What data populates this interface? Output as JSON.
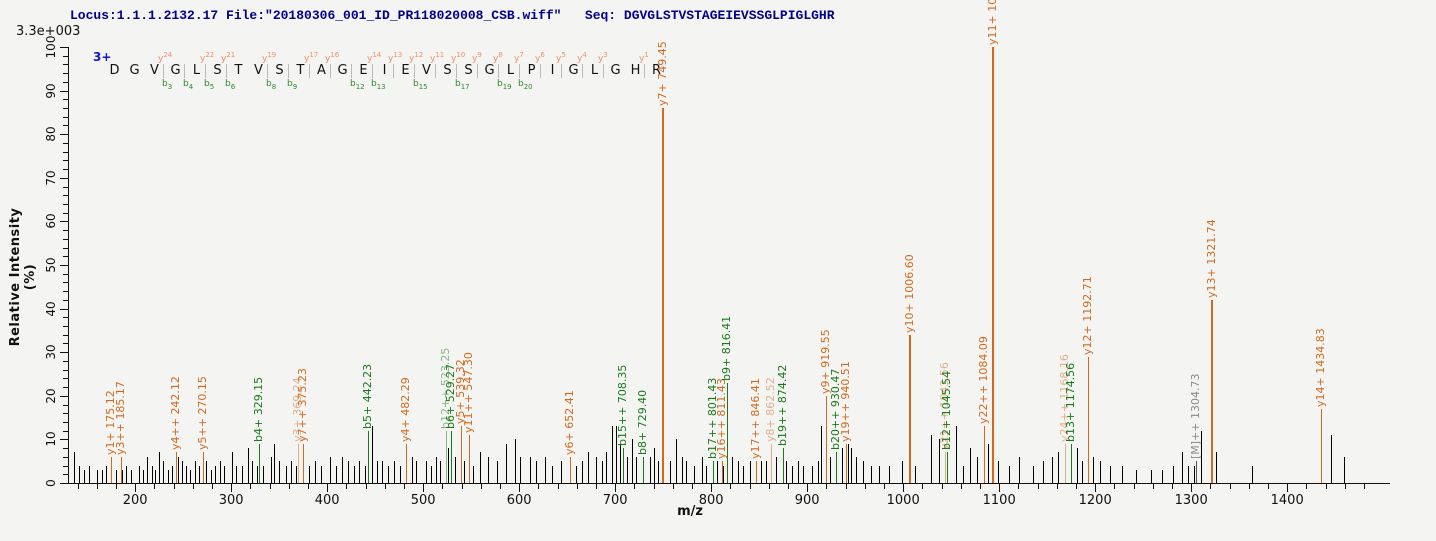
{
  "header": {
    "locus_file": "Locus:1.1.1.2132.17 File:\"20180306_001_ID_PR118020008_CSB.wiff\"",
    "seq": "Seq: DGVGLSTVSTAGEIEVSSGLPIGLGHR"
  },
  "scale_label": "3.3e+003",
  "axes": {
    "y_title": "Relative  Intensity (%)",
    "x_title": "m/z",
    "y_tick_step": 10,
    "y_minor_step": 2,
    "y_max": 100,
    "x_tick_min": 200,
    "x_tick_max": 1400,
    "x_tick_step": 100,
    "x_minor_step": 20,
    "x_axis_mz_min": 130,
    "x_axis_mz_end": 1500
  },
  "peptide": {
    "charge": "3+",
    "sequence": "DGVGLSTVSTAGEIEVSSGLPIGLGHR",
    "y_ions": {
      "3": 24,
      "5": 22,
      "6": 21,
      "8": 19,
      "10": 17,
      "11": 16,
      "13": 14,
      "14": 13,
      "15": 12,
      "16": 11,
      "17": 10,
      "18": 9,
      "19": 8,
      "20": 7,
      "21": 6,
      "22": 5,
      "23": 4,
      "24": 3,
      "26": 1
    },
    "b_ions": {
      "3": 3,
      "4": 4,
      "5": 5,
      "6": 6,
      "8": 8,
      "9": 9,
      "12": 12,
      "13": 13,
      "15": 15,
      "17": 17,
      "19": 19,
      "20": 20
    }
  },
  "colors": {
    "y_ion": "#d2691e",
    "b_ion": "#1a7a1a",
    "precursor": "#8a8a8a",
    "peak": "#000000",
    "header_text": "#00008b",
    "charge_text": "#1515c8",
    "seq_y_label": "#ef9166",
    "seq_b_label": "#2f8b2f"
  },
  "chart_data": {
    "type": "bar",
    "title": "MS/MS annotated spectrum",
    "xlabel": "m/z",
    "ylabel": "Relative  Intensity (%)",
    "ylim": [
      0,
      100
    ],
    "xlim": [
      130,
      1500
    ],
    "labeled_peaks": [
      {
        "mz": 175.12,
        "intensity": 6,
        "label": "y1+ 175.12",
        "series": "y"
      },
      {
        "mz": 185.17,
        "intensity": 6,
        "label": "y3++ 185.17",
        "series": "y"
      },
      {
        "mz": 242.12,
        "intensity": 7,
        "label": "y4++ 242.12",
        "series": "y"
      },
      {
        "mz": 270.15,
        "intensity": 7,
        "label": "y5++ 270.15",
        "series": "y"
      },
      {
        "mz": 329.15,
        "intensity": 9,
        "label": "b4+ 329.15",
        "series": "b"
      },
      {
        "mz": 369.24,
        "intensity": 9,
        "label": "y3+ 369.24",
        "series": "y",
        "faint": true
      },
      {
        "mz": 375.23,
        "intensity": 9,
        "label": "y7++ 375.23",
        "series": "y"
      },
      {
        "mz": 442.23,
        "intensity": 12,
        "label": "b5+ 442.23",
        "series": "b"
      },
      {
        "mz": 482.29,
        "intensity": 9,
        "label": "y4+ 482.29",
        "series": "y"
      },
      {
        "mz": 523.25,
        "intensity": 12,
        "label": "b12++ 523.25",
        "series": "b",
        "faint": true
      },
      {
        "mz": 529.27,
        "intensity": 12,
        "label": "b6+ 529.27",
        "series": "b"
      },
      {
        "mz": 539.32,
        "intensity": 13,
        "label": "y5+ 539.32",
        "series": "y"
      },
      {
        "mz": 547.3,
        "intensity": 11,
        "label": "y11++ 547.30",
        "series": "y"
      },
      {
        "mz": 652.41,
        "intensity": 6,
        "label": "y6+ 652.41",
        "series": "y"
      },
      {
        "mz": 708.35,
        "intensity": 8,
        "label": "b15++ 708.35",
        "series": "b"
      },
      {
        "mz": 729.4,
        "intensity": 6,
        "label": "b8+ 729.40",
        "series": "b"
      },
      {
        "mz": 749.45,
        "intensity": 86,
        "label": "y7+ 749.45",
        "series": "y"
      },
      {
        "mz": 801.43,
        "intensity": 5,
        "label": "b17++ 801.43",
        "series": "b"
      },
      {
        "mz": 811.43,
        "intensity": 5,
        "label": "y16++ 811.43",
        "series": "y"
      },
      {
        "mz": 816.41,
        "intensity": 23,
        "label": "b9+ 816.41",
        "series": "b"
      },
      {
        "mz": 846.41,
        "intensity": 5,
        "label": "y17++ 846.41",
        "series": "y"
      },
      {
        "mz": 862.52,
        "intensity": 9,
        "label": "y8+ 862.52",
        "series": "y",
        "faint": true
      },
      {
        "mz": 874.42,
        "intensity": 8,
        "label": "b19++ 874.42",
        "series": "b"
      },
      {
        "mz": 919.55,
        "intensity": 20,
        "label": "y9+ 919.55",
        "series": "y"
      },
      {
        "mz": 930.47,
        "intensity": 7,
        "label": "b20++ 930.47",
        "series": "b"
      },
      {
        "mz": 940.51,
        "intensity": 9,
        "label": "y19++ 940.51",
        "series": "y"
      },
      {
        "mz": 1006.6,
        "intensity": 34,
        "label": "y10+ 1006.60",
        "series": "y"
      },
      {
        "mz": 1043.56,
        "intensity": 7,
        "label": "y21++ 1043.56",
        "series": "y",
        "faint": true
      },
      {
        "mz": 1045.54,
        "intensity": 7,
        "label": "b12+ 1045.54",
        "series": "b"
      },
      {
        "mz": 1084.09,
        "intensity": 13,
        "label": "y22++ 1084.09",
        "series": "y"
      },
      {
        "mz": 1093.62,
        "intensity": 100,
        "label": "y11+ 1093.62",
        "series": "y"
      },
      {
        "mz": 1168.16,
        "intensity": 9,
        "label": "y24++ 1168.16",
        "series": "y",
        "faint": true
      },
      {
        "mz": 1174.56,
        "intensity": 9,
        "label": "b13+ 1174.56",
        "series": "b"
      },
      {
        "mz": 1192.71,
        "intensity": 29,
        "label": "y12+ 1192.71",
        "series": "y"
      },
      {
        "mz": 1304.73,
        "intensity": 5,
        "label": "[M]++ 1304.73",
        "series": "M"
      },
      {
        "mz": 1321.74,
        "intensity": 42,
        "label": "y13+ 1321.74",
        "series": "y"
      },
      {
        "mz": 1434.83,
        "intensity": 17,
        "label": "y14+ 1434.83",
        "series": "y"
      }
    ],
    "unlabeled_peaks": [
      [
        136,
        7
      ],
      [
        141,
        4
      ],
      [
        147,
        3
      ],
      [
        152,
        4
      ],
      [
        160,
        3
      ],
      [
        165,
        3
      ],
      [
        170,
        4
      ],
      [
        180,
        3
      ],
      [
        186,
        3
      ],
      [
        190,
        4
      ],
      [
        196,
        3
      ],
      [
        204,
        4
      ],
      [
        208,
        3
      ],
      [
        212,
        6
      ],
      [
        217,
        4
      ],
      [
        221,
        3
      ],
      [
        225,
        7
      ],
      [
        229,
        5
      ],
      [
        234,
        3
      ],
      [
        238,
        4
      ],
      [
        243,
        7
      ],
      [
        245,
        6
      ],
      [
        249,
        5
      ],
      [
        253,
        4
      ],
      [
        257,
        3
      ],
      [
        262,
        5
      ],
      [
        266,
        4
      ],
      [
        274,
        5
      ],
      [
        279,
        3
      ],
      [
        283,
        4
      ],
      [
        288,
        5
      ],
      [
        293,
        4
      ],
      [
        301,
        7
      ],
      [
        305,
        4
      ],
      [
        311,
        4
      ],
      [
        317,
        8
      ],
      [
        322,
        5
      ],
      [
        327,
        4
      ],
      [
        333,
        4
      ],
      [
        341,
        6
      ],
      [
        345,
        9
      ],
      [
        350,
        5
      ],
      [
        357,
        4
      ],
      [
        362,
        5
      ],
      [
        368,
        4
      ],
      [
        381,
        4
      ],
      [
        387,
        5
      ],
      [
        394,
        4
      ],
      [
        403,
        6
      ],
      [
        409,
        4
      ],
      [
        415,
        6
      ],
      [
        422,
        5
      ],
      [
        428,
        4
      ],
      [
        433,
        5
      ],
      [
        439,
        4
      ],
      [
        447,
        13
      ],
      [
        452,
        5
      ],
      [
        457,
        5
      ],
      [
        463,
        4
      ],
      [
        470,
        5
      ],
      [
        476,
        4
      ],
      [
        488,
        6
      ],
      [
        493,
        5
      ],
      [
        503,
        5
      ],
      [
        508,
        4
      ],
      [
        513,
        6
      ],
      [
        518,
        5
      ],
      [
        526,
        8
      ],
      [
        533,
        6
      ],
      [
        543,
        5
      ],
      [
        552,
        4
      ],
      [
        559,
        7
      ],
      [
        568,
        6
      ],
      [
        577,
        5
      ],
      [
        586,
        9
      ],
      [
        596,
        10
      ],
      [
        601,
        6
      ],
      [
        611,
        6
      ],
      [
        617,
        5
      ],
      [
        627,
        6
      ],
      [
        634,
        4
      ],
      [
        644,
        5
      ],
      [
        659,
        4
      ],
      [
        665,
        5
      ],
      [
        672,
        7
      ],
      [
        680,
        6
      ],
      [
        686,
        5
      ],
      [
        690,
        7
      ],
      [
        697,
        13
      ],
      [
        701,
        13
      ],
      [
        705,
        9
      ],
      [
        712,
        6
      ],
      [
        717,
        10
      ],
      [
        722,
        6
      ],
      [
        736,
        6
      ],
      [
        740,
        8
      ],
      [
        745,
        5
      ],
      [
        757,
        5
      ],
      [
        763,
        10
      ],
      [
        770,
        6
      ],
      [
        774,
        5
      ],
      [
        782,
        4
      ],
      [
        790,
        6
      ],
      [
        795,
        4
      ],
      [
        806,
        5
      ],
      [
        812,
        4
      ],
      [
        822,
        6
      ],
      [
        828,
        5
      ],
      [
        833,
        4
      ],
      [
        840,
        5
      ],
      [
        852,
        5
      ],
      [
        857,
        5
      ],
      [
        868,
        6
      ],
      [
        878,
        5
      ],
      [
        884,
        4
      ],
      [
        890,
        5
      ],
      [
        896,
        4
      ],
      [
        905,
        4
      ],
      [
        911,
        5
      ],
      [
        914,
        13
      ],
      [
        924,
        6
      ],
      [
        936,
        8
      ],
      [
        943,
        9
      ],
      [
        946,
        8
      ],
      [
        951,
        6
      ],
      [
        958,
        5
      ],
      [
        966,
        4
      ],
      [
        975,
        4
      ],
      [
        985,
        4
      ],
      [
        999,
        5
      ],
      [
        1012,
        4
      ],
      [
        1029,
        11
      ],
      [
        1037,
        10
      ],
      [
        1055,
        13
      ],
      [
        1062,
        4
      ],
      [
        1070,
        8
      ],
      [
        1077,
        6
      ],
      [
        1088,
        9
      ],
      [
        1099,
        5
      ],
      [
        1110,
        4
      ],
      [
        1121,
        6
      ],
      [
        1135,
        4
      ],
      [
        1146,
        5
      ],
      [
        1155,
        6
      ],
      [
        1161,
        7
      ],
      [
        1181,
        8
      ],
      [
        1186,
        5
      ],
      [
        1198,
        6
      ],
      [
        1205,
        5
      ],
      [
        1215,
        4
      ],
      [
        1228,
        4
      ],
      [
        1243,
        3
      ],
      [
        1258,
        3
      ],
      [
        1270,
        3
      ],
      [
        1281,
        4
      ],
      [
        1290,
        7
      ],
      [
        1297,
        4
      ],
      [
        1303,
        4
      ],
      [
        1310,
        12
      ],
      [
        1326,
        7
      ],
      [
        1363,
        4
      ],
      [
        1446,
        11
      ],
      [
        1459,
        6
      ]
    ]
  }
}
